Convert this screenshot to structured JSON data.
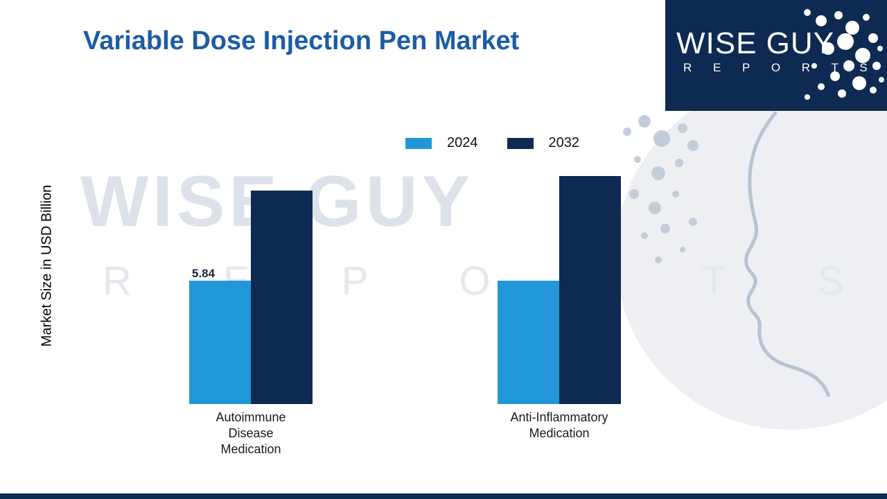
{
  "page": {
    "title": "Variable Dose Injection Pen Market"
  },
  "logo": {
    "brand": "WISE GUY",
    "subtitle": "R E P O R T S"
  },
  "watermark": {
    "line1": "WISE GUY",
    "line2": "R E P O R T S"
  },
  "chart_data": {
    "type": "bar",
    "title": "Variable Dose Injection Pen Market",
    "ylabel": "Market Size in USD Billion",
    "categories": [
      "Autoimmune Disease Medication",
      "Anti-Inflammatory Medication"
    ],
    "series": [
      {
        "name": "2024",
        "color": "#2297d8",
        "values": [
          5.84,
          5.84
        ]
      },
      {
        "name": "2032",
        "color": "#0e2a52",
        "values": [
          10.1,
          10.8
        ]
      }
    ],
    "data_labels": {
      "visible": "5.84"
    },
    "ylim": [
      0,
      12
    ],
    "grid": false,
    "legend_position": "top"
  },
  "colors": {
    "accent_blue": "#2297d8",
    "navy": "#0e2a52",
    "title_blue": "#1c5ca5",
    "watermark_gray": "#dde1e9",
    "circle_gray": "#edeff2"
  }
}
